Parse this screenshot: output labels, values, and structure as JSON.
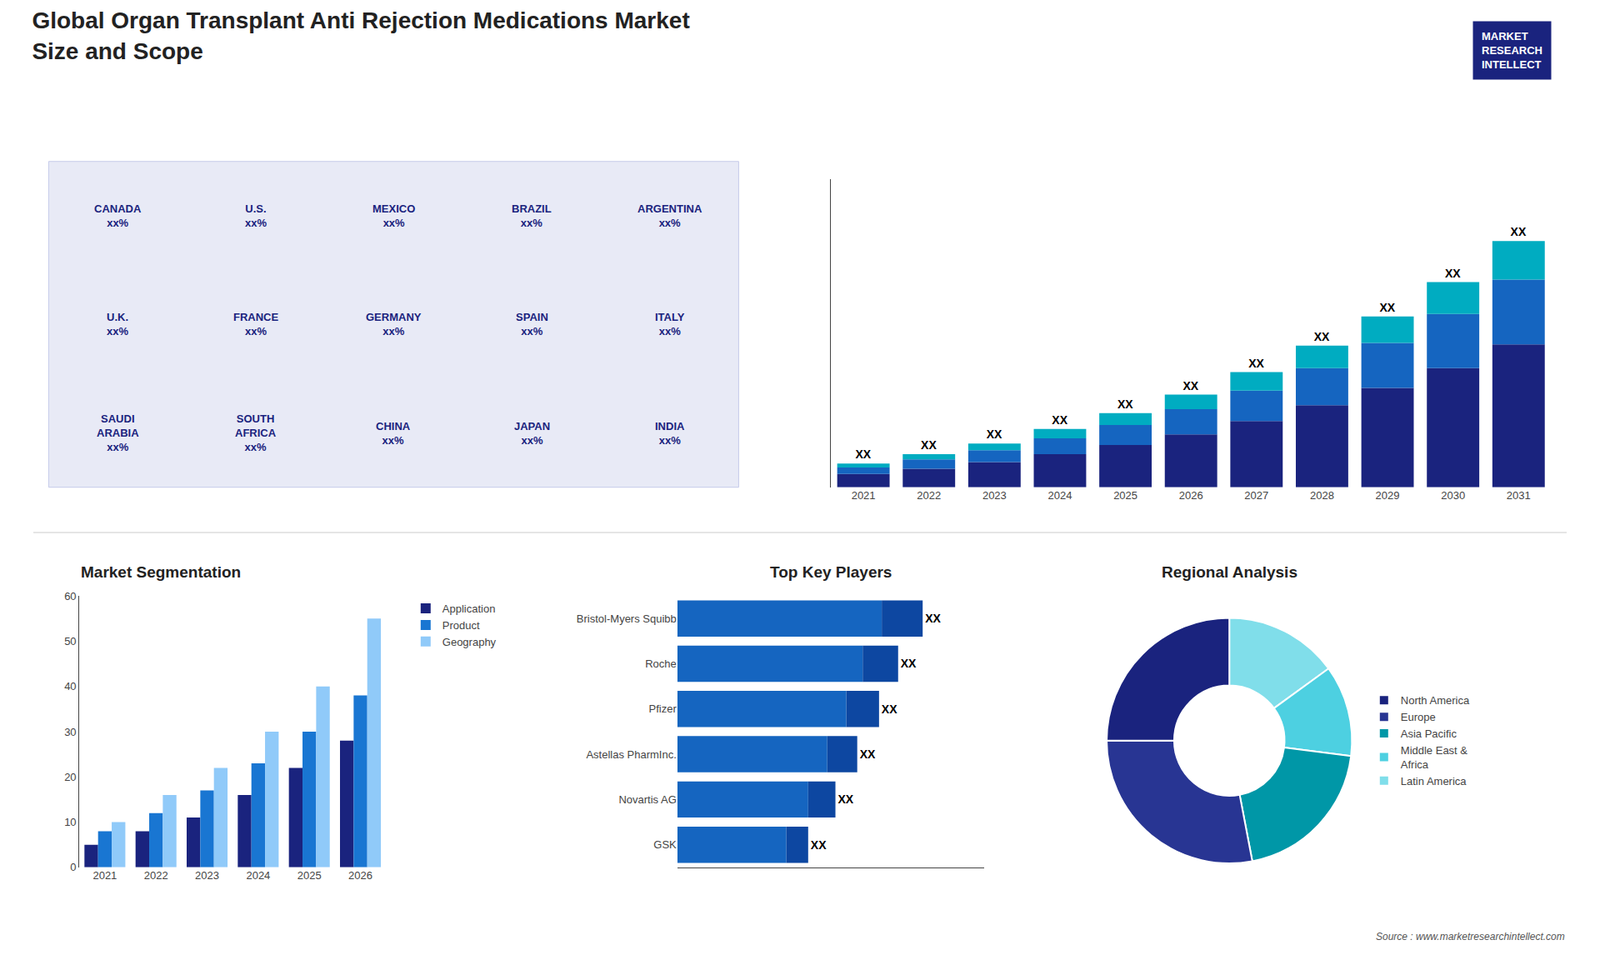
{
  "title": "Global Organ Transplant Anti Rejection Medications Market",
  "subtitle": "Size and Scope",
  "annotations": [
    "MARKET\nRESEARCH\nINTELLECT",
    "Source : www.marketresearchintellect.com"
  ],
  "chart_data": [
    {
      "type": "map",
      "annotations": [
        "CANADA\nxx%",
        "U.S.\nxx%",
        "MEXICO\nxx%",
        "BRAZIL\nxx%",
        "ARGENTINA\nxx%",
        "U.K.\nxx%",
        "FRANCE\nxx%",
        "GERMANY\nxx%",
        "SPAIN\nxx%",
        "ITALY\nxx%",
        "SAUDI\nARABIA\nxx%",
        "SOUTH\nAFRICA\nxx%",
        "CHINA\nxx%",
        "JAPAN\nxx%",
        "INDIA\nxx%"
      ]
    },
    {
      "type": "bar",
      "stacked": true,
      "grid": false,
      "tick_labels": "x",
      "categories": [
        "2021",
        "2022",
        "2023",
        "2024",
        "2025",
        "2026",
        "2027",
        "2028",
        "2029",
        "2030",
        "2031"
      ],
      "series": [
        {
          "color": "#1a237e",
          "values": [
            1,
            1.4,
            1.9,
            2.5,
            3.2,
            4.0,
            5.0,
            6.2,
            7.5,
            9.0,
            10.8
          ]
        },
        {
          "color": "#1565c0",
          "values": [
            0.5,
            0.7,
            0.9,
            1.2,
            1.5,
            1.9,
            2.3,
            2.8,
            3.4,
            4.1,
            4.9
          ]
        },
        {
          "color": "#00acc1",
          "values": [
            0.3,
            0.4,
            0.5,
            0.7,
            0.9,
            1.1,
            1.4,
            1.7,
            2.0,
            2.4,
            2.9
          ],
          "value_labels": [
            "XX",
            "XX",
            "XX",
            "XX",
            "XX",
            "XX",
            "XX",
            "XX",
            "XX",
            "XX",
            "XX"
          ]
        }
      ],
      "ylim": [
        0,
        23.25
      ]
    },
    {
      "type": "bar",
      "title": "Market Segmentation",
      "grid": false,
      "legend": "right",
      "categories": [
        "2021",
        "2022",
        "2023",
        "2024",
        "2025",
        "2026"
      ],
      "series": [
        {
          "name": "Application",
          "color": "#1a237e",
          "values": [
            5,
            8,
            11,
            16,
            22,
            28
          ]
        },
        {
          "name": "Product",
          "color": "#1976d2",
          "values": [
            8,
            12,
            17,
            23,
            30,
            38
          ]
        },
        {
          "name": "Geography",
          "color": "#90caf9",
          "values": [
            10,
            16,
            22,
            30,
            40,
            55
          ]
        }
      ],
      "ylim": [
        0,
        60
      ],
      "yticks": [
        0,
        10,
        20,
        30,
        40,
        50,
        60
      ]
    },
    {
      "type": "bar",
      "title": "Top Key Players",
      "orientation": "horizontal",
      "stacked": true,
      "grid": false,
      "tick_labels": "y",
      "categories": [
        "Bristol-Myers Squibb",
        "Roche",
        "Pfizer",
        "Astellas PharmInc.",
        "Novartis AG",
        "GSK"
      ],
      "series": [
        {
          "color": "#1565c0",
          "values": [
            7.5,
            6.8,
            6.2,
            5.5,
            4.8,
            4.0
          ]
        },
        {
          "color": "#0d47a1",
          "values": [
            1.5,
            1.3,
            1.2,
            1.1,
            1.0,
            0.8
          ],
          "value_labels": [
            "XX",
            "XX",
            "XX",
            "XX",
            "XX",
            "XX"
          ]
        }
      ],
      "xlim": [
        0,
        11.25
      ]
    },
    {
      "type": "pie",
      "title": "Regional Analysis",
      "legend": "right",
      "categories": [
        "Latin America",
        "Middle East &\nAfrica",
        "Asia Pacific",
        "Europe",
        "North America"
      ],
      "values": [
        15,
        12,
        20,
        28,
        25
      ],
      "colors": [
        "#80deea",
        "#4dd0e1",
        "#0097a7",
        "#283593",
        "#1a237e"
      ]
    }
  ]
}
